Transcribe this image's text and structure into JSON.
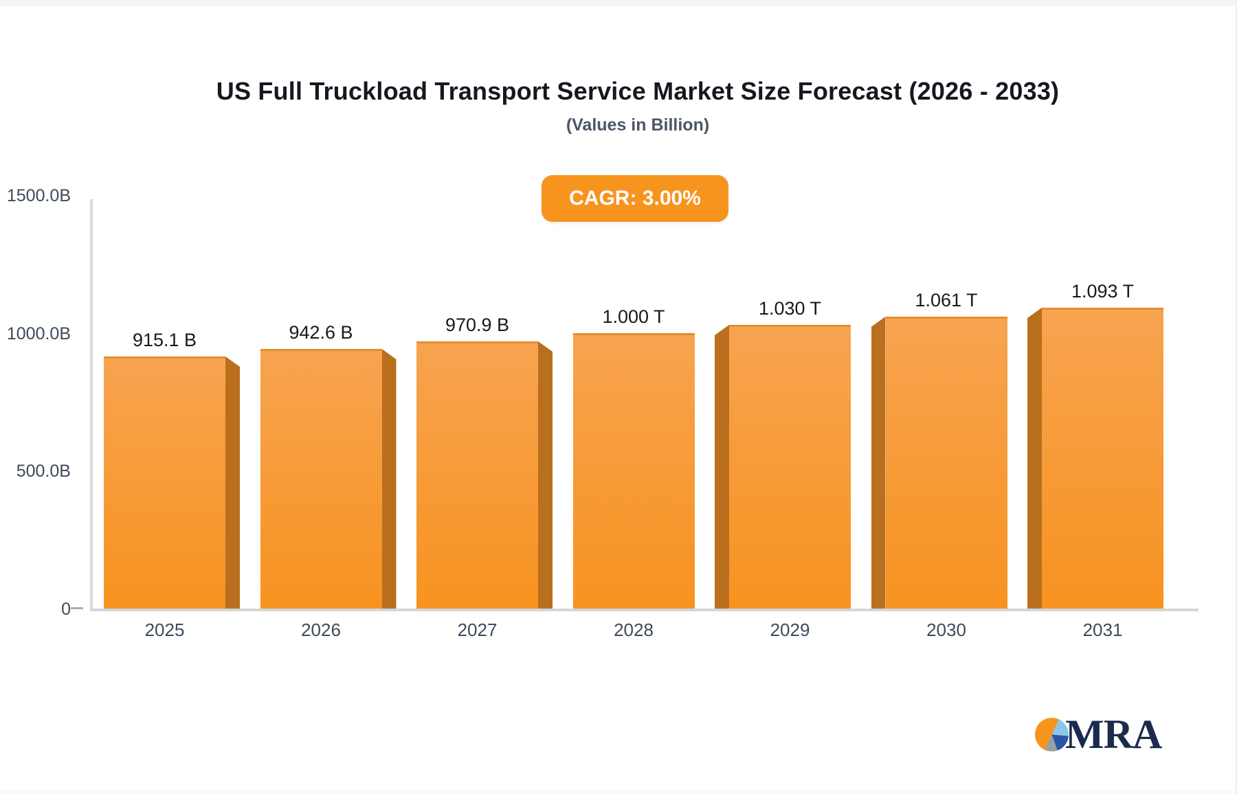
{
  "header": {
    "title": "US Full Truckload Transport Service Market Size Forecast (2026 - 2033)",
    "subtitle": "(Values in Billion)",
    "cagr_badge_label": "CAGR: 3.00%"
  },
  "chart_data": {
    "type": "bar",
    "title": "US Full Truckload Transport Service Market Size Forecast (2026 - 2033)",
    "subtitle": "(Values in Billion)",
    "cagr_percent": 3.0,
    "categories": [
      "2025",
      "2026",
      "2027",
      "2028",
      "2029",
      "2030",
      "2031"
    ],
    "values_billion": [
      915.1,
      942.6,
      970.9,
      1000,
      1030,
      1061,
      1093
    ],
    "value_labels": [
      "915.1 B",
      "942.6 B",
      "970.9 B",
      "1.000 T",
      "1.030 T",
      "1.061 T",
      "1.093 T"
    ],
    "ylabel": "",
    "xlabel": "",
    "ylim_billion": [
      0,
      1500
    ],
    "y_ticks": [
      "1500.0B",
      "1000.0B",
      "500.0B",
      "0"
    ],
    "grid": "off",
    "legend": "none",
    "bar_style": "3d-extruded"
  },
  "colors": {
    "bar_face_top": "#F7A350",
    "bar_face_bottom": "#F79320",
    "bar_top_edge": "#E28F2D",
    "bar_side_dark": "#B96F1E",
    "badge_background": "#F7941E",
    "axis_line": "#D6D8DD",
    "title_text": "#15181F",
    "subtitle_text": "#4C5566",
    "axis_text": "#3E4A5B",
    "value_text": "#191919",
    "logo_navy": "#1B2B4D",
    "logo_orange": "#F7941E",
    "logo_light_blue": "#8EC6EA",
    "logo_dark_blue": "#2D55A5",
    "logo_gray": "#9B9EA3"
  },
  "logo": {
    "text": "MRA"
  }
}
